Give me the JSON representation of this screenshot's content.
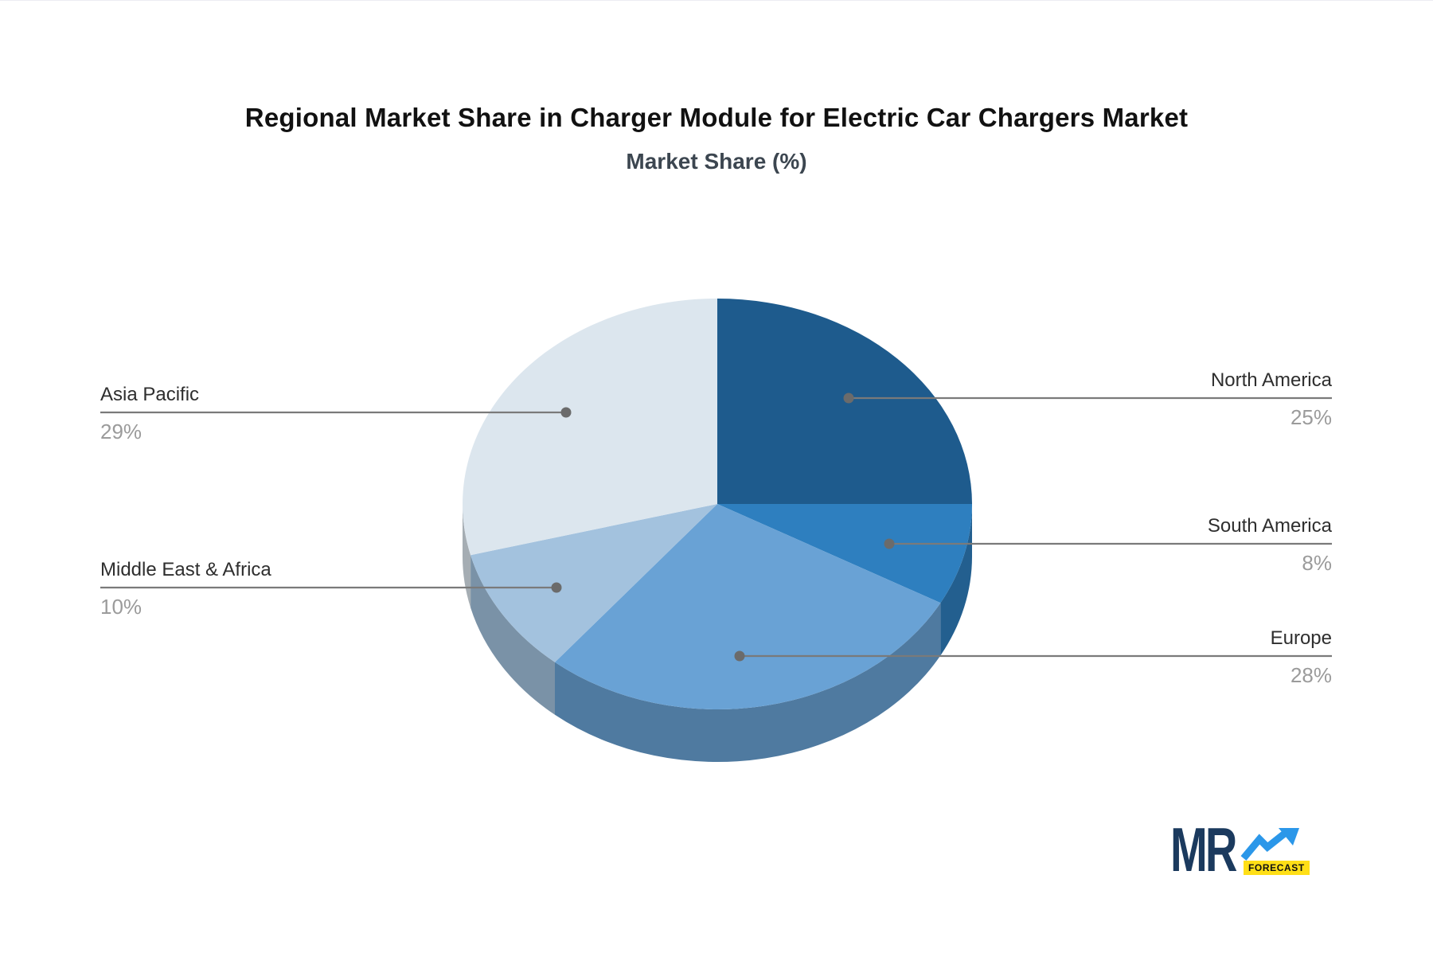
{
  "title": "Regional Market Share in Charger Module for Electric Car Chargers Market",
  "subtitle": "Market Share (%)",
  "chart_data": {
    "type": "pie",
    "style": "3d",
    "title": "Regional Market Share in Charger Module for Electric Car Chargers Market",
    "subtitle": "Market Share (%)",
    "unit": "percent",
    "start_angle_deg": 0,
    "direction": "clockwise",
    "categories": [
      "North America",
      "South America",
      "Europe",
      "Middle East & Africa",
      "Asia Pacific"
    ],
    "values": [
      25,
      8,
      28,
      10,
      29
    ],
    "colors": [
      "#1e5b8d",
      "#2e7fbf",
      "#69a2d5",
      "#a3c2de",
      "#dce6ee"
    ],
    "labels": [
      {
        "name": "North America",
        "pct": "25%"
      },
      {
        "name": "South America",
        "pct": "8%"
      },
      {
        "name": "Europe",
        "pct": "28%"
      },
      {
        "name": "Middle East & Africa",
        "pct": "10%"
      },
      {
        "name": "Asia Pacific",
        "pct": "29%"
      }
    ],
    "legend_position": "none"
  },
  "logo": {
    "text": "MR",
    "badge": "FORECAST"
  },
  "colors": {
    "leader_line": "#7a7a7a",
    "leader_dot": "#6b6b6b",
    "label_name": "#2e2e2e",
    "label_value": "#9b9b9b",
    "logo_navy": "#1b3a5e",
    "logo_blue": "#2b97e9",
    "logo_yellow": "#ffdf17"
  }
}
